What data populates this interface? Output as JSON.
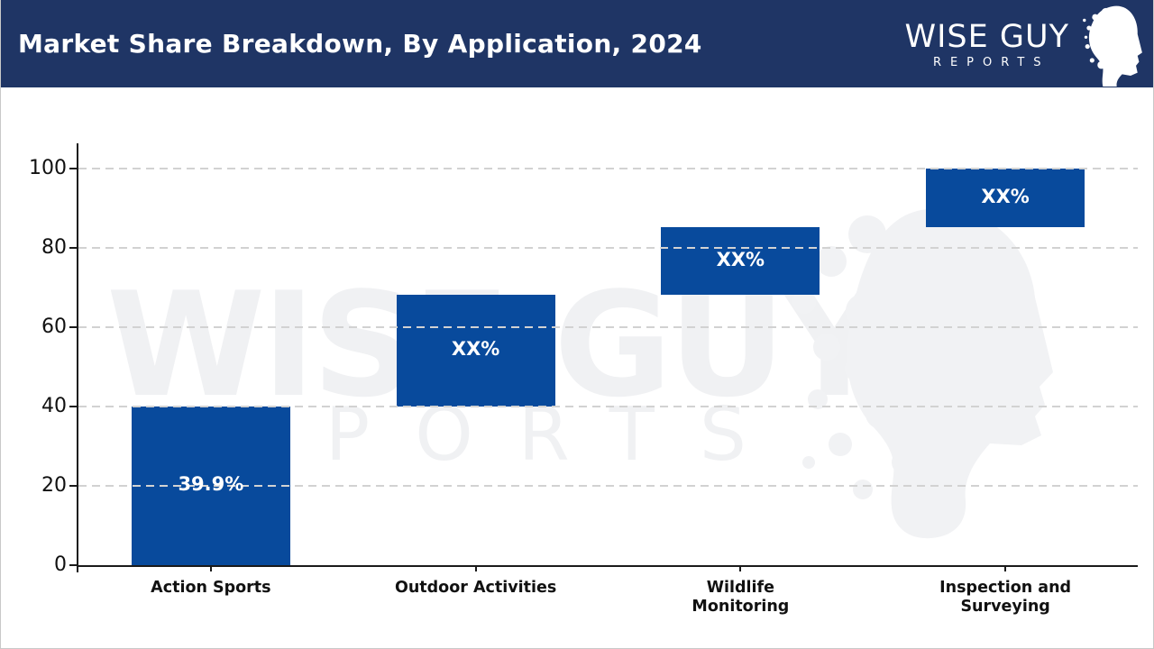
{
  "header": {
    "title": "Market Share Breakdown, By Application, 2024",
    "logo": {
      "line1": "WISE GUY",
      "line2": "REPORTS"
    }
  },
  "watermark": {
    "line1": "WISE GUY",
    "line2": "REPORTS"
  },
  "chart_data": {
    "type": "bar",
    "subtype": "waterfall",
    "title": "Market Share Breakdown, By Application, 2024",
    "categories": [
      "Action Sports",
      "Outdoor Activities",
      "Wildlife Monitoring",
      "Inspection and Surveying"
    ],
    "category_label_lines": [
      [
        "Action Sports"
      ],
      [
        "Outdoor Activities"
      ],
      [
        "Wildlife",
        "Monitoring"
      ],
      [
        "Inspection and",
        "Surveying"
      ]
    ],
    "segments": [
      {
        "category": "Action Sports",
        "start": 0,
        "end": 39.9,
        "label": "39.9%"
      },
      {
        "category": "Outdoor Activities",
        "start": 39.9,
        "end": 68.2,
        "label": "XX%"
      },
      {
        "category": "Wildlife Monitoring",
        "start": 68.2,
        "end": 85.2,
        "label": "XX%"
      },
      {
        "category": "Inspection and Surveying",
        "start": 85.2,
        "end": 100,
        "label": "XX%"
      }
    ],
    "yticks": [
      0,
      20,
      40,
      60,
      80,
      100
    ],
    "ylim": [
      0,
      100
    ],
    "grid": "horizontal-dashed",
    "legend": "none",
    "bar_color": "#084a9c",
    "header_color": "#1f3565",
    "gridline_color": "#d2d2d2",
    "watermark_color": "#f0f1f3"
  }
}
